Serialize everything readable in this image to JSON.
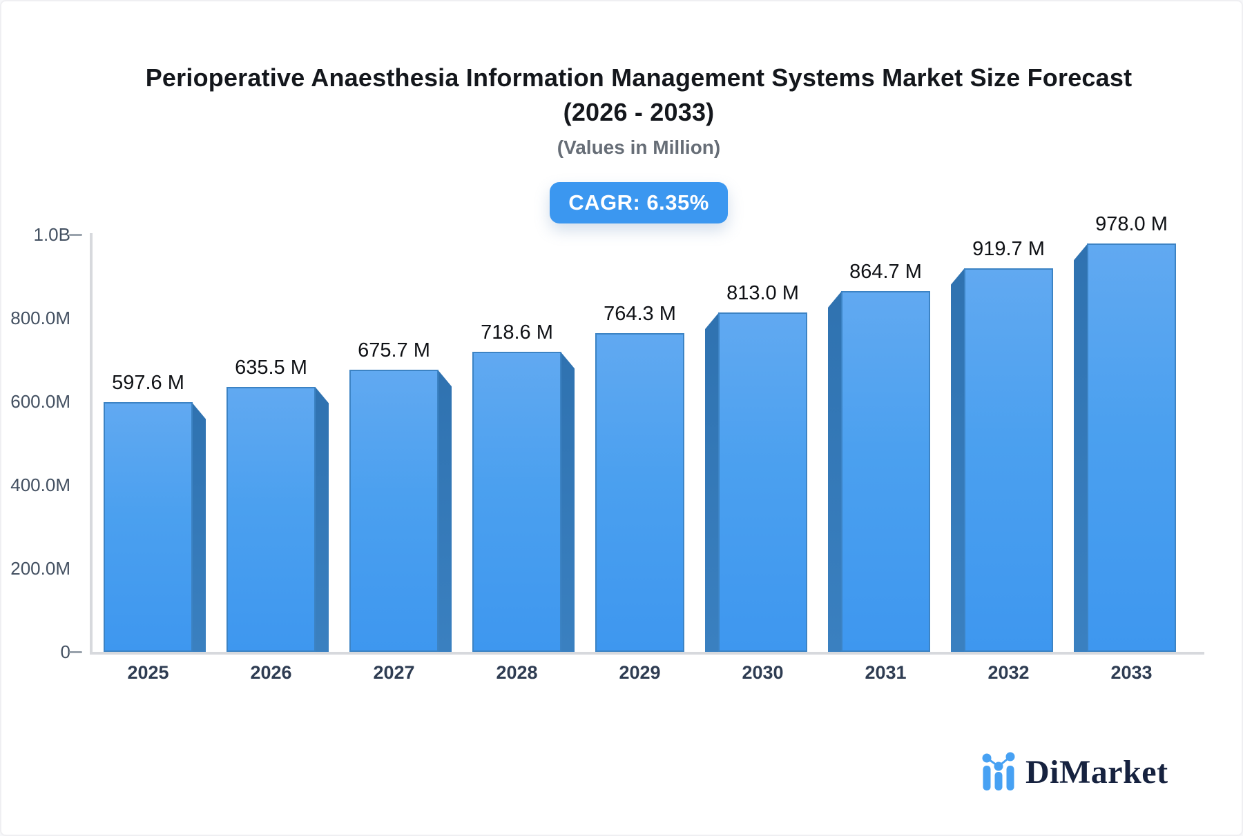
{
  "page": {
    "title_line1": "Perioperative Anaesthesia Information Management Systems Market Size Forecast",
    "title_line2": "(2026 - 2033)",
    "subtitle": "(Values in Million)",
    "cagr_label": "CAGR: 6.35%"
  },
  "logo": {
    "text": "DiMarket",
    "icon": "bar-chart-trend-icon"
  },
  "colors": {
    "background": "#FFFFFF",
    "title": "#14171C",
    "subtitle": "#666D76",
    "badge_bg": "#3B97F0",
    "badge_text": "#FFFFFF",
    "bar_face_top": "#61A9F1",
    "bar_face_mid": "#4BA0EF",
    "bar_face_bottom": "#3E97EF",
    "bar_face_border": "#3C83C4",
    "bar_side_dark": "#2F72B0",
    "bar_side_light": "#3A80C0",
    "axis_line": "#D7D9DD",
    "tick": "#99A2AC",
    "y_label": "#435061",
    "x_label": "#2E3C52",
    "value_label": "#0F1115",
    "logo_text": "#16223F",
    "logo_icon_blue": "#47A1F3"
  },
  "chart_data": {
    "type": "bar",
    "title": "Perioperative Anaesthesia Information Management Systems Market Size Forecast (2026 - 2033)",
    "subtitle": "(Values in Million)",
    "values_unit": "Million",
    "cagr_percent": 6.35,
    "categories": [
      "2025",
      "2026",
      "2027",
      "2028",
      "2029",
      "2030",
      "2031",
      "2032",
      "2033"
    ],
    "values": [
      597.6,
      635.5,
      675.7,
      718.6,
      764.3,
      813.0,
      864.7,
      919.7,
      978.0
    ],
    "value_labels": [
      "597.6 M",
      "635.5 M",
      "675.7 M",
      "718.6 M",
      "764.3 M",
      "813.0 M",
      "864.7 M",
      "919.7 M",
      "978.0 M"
    ],
    "y_ticks": [
      {
        "label": "1.0B",
        "value": 1000
      },
      {
        "label": "800.0M",
        "value": 800
      },
      {
        "label": "600.0M",
        "value": 600
      },
      {
        "label": "400.0M",
        "value": 400
      },
      {
        "label": "200.0M",
        "value": 200
      },
      {
        "label": "0",
        "value": 0
      }
    ],
    "ylim": [
      0,
      1000
    ],
    "grid": false,
    "legend": false,
    "bar_style_3d": true
  }
}
